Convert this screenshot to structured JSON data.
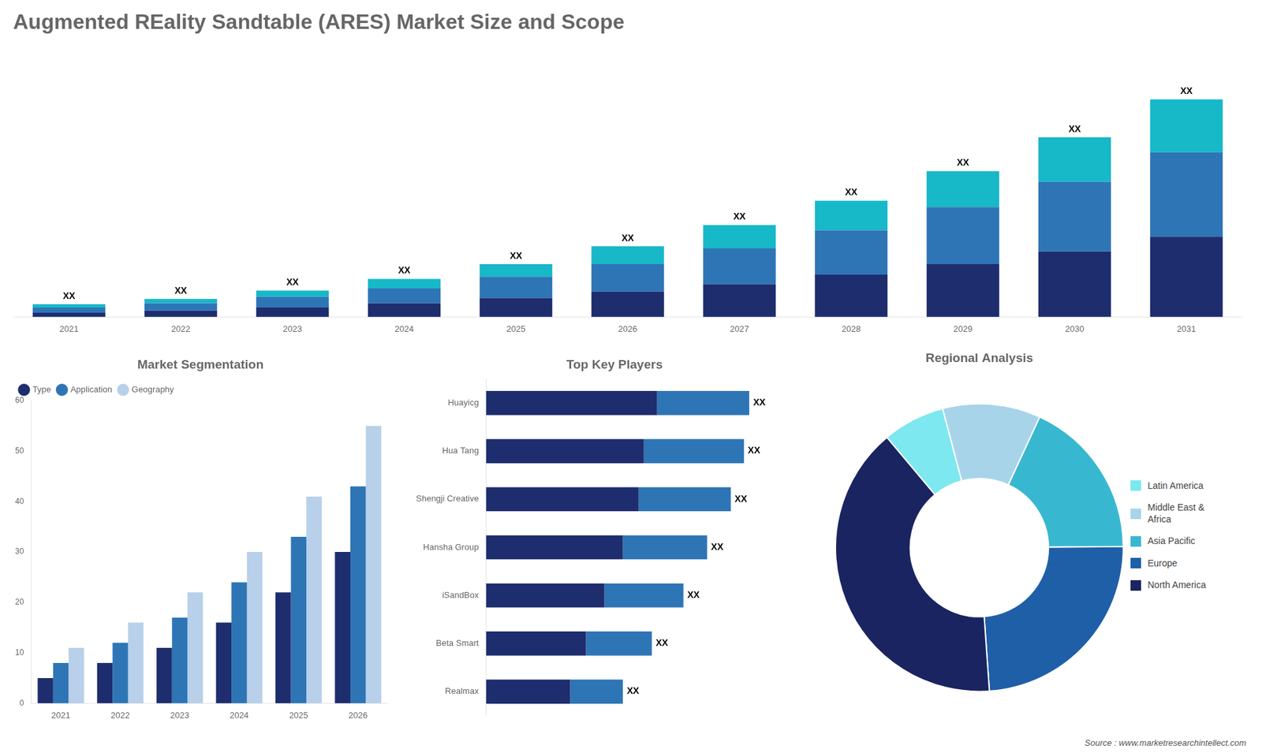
{
  "chart_data": [
    {
      "type": "bar",
      "title": "Augmented REality Sandtable (ARES) Market Size and Scope",
      "categories": [
        "2021",
        "2022",
        "2023",
        "2024",
        "2025",
        "2026",
        "2027",
        "2028",
        "2029",
        "2030",
        "2031"
      ],
      "series": [
        {
          "color": "#1e2d6e",
          "values": [
            2,
            3,
            4.5,
            6.5,
            9,
            12,
            15.5,
            20,
            25,
            31,
            38
          ]
        },
        {
          "color": "#2e75b6",
          "values": [
            2.5,
            3.5,
            5,
            7,
            10,
            13,
            17,
            21,
            27,
            33,
            40
          ]
        },
        {
          "color": "#17b8c8",
          "values": [
            1.5,
            2,
            3,
            4.5,
            6,
            8.5,
            11,
            14,
            17,
            21,
            25
          ]
        }
      ],
      "stacked": true,
      "ylim": [
        0,
        125.66
      ],
      "grid": false,
      "tick_labels": "x",
      "annotations": [
        {
          "text": "XX",
          "x": "2021"
        },
        {
          "text": "XX",
          "x": "2022"
        },
        {
          "text": "XX",
          "x": "2023"
        },
        {
          "text": "XX",
          "x": "2024"
        },
        {
          "text": "XX",
          "x": "2025"
        },
        {
          "text": "XX",
          "x": "2026"
        },
        {
          "text": "XX",
          "x": "2027"
        },
        {
          "text": "XX",
          "x": "2028"
        },
        {
          "text": "XX",
          "x": "2029"
        },
        {
          "text": "XX",
          "x": "2030"
        },
        {
          "text": "XX",
          "x": "2031"
        },
        {
          "text": "Source : www.marketresearchintellect.com"
        }
      ]
    },
    {
      "type": "bar",
      "title": "Market Segmentation",
      "categories": [
        "2021",
        "2022",
        "2023",
        "2024",
        "2025",
        "2026"
      ],
      "series": [
        {
          "name": "Type",
          "color": "#1e2d6e",
          "values": [
            5,
            8,
            11,
            16,
            22,
            30
          ]
        },
        {
          "name": "Application",
          "color": "#2e75b6",
          "values": [
            8,
            12,
            17,
            24,
            33,
            43
          ]
        },
        {
          "name": "Geography",
          "color": "#b8d0ea",
          "values": [
            11,
            16,
            22,
            30,
            41,
            55
          ]
        }
      ],
      "ylim": [
        0,
        60
      ],
      "yticks": [
        0,
        10,
        20,
        30,
        40,
        50,
        60
      ],
      "grid": false,
      "legend": "upper left"
    },
    {
      "type": "bar",
      "title": "Top Key Players",
      "orientation": "horizontal",
      "stacked": true,
      "categories": [
        "Huayicg",
        "Hua Tang",
        "Shengji Creative",
        "Hansha Group",
        "iSandBox",
        "Beta Smart",
        "Realmax"
      ],
      "series": [
        {
          "color": "#1e2d6e",
          "values": [
            6.5,
            6.0,
            5.8,
            5.2,
            4.5,
            3.8,
            3.2
          ]
        },
        {
          "color": "#2e75b6",
          "values": [
            3.5,
            3.8,
            3.5,
            3.2,
            3.0,
            2.5,
            2.0
          ]
        }
      ],
      "xlim": [
        0,
        12.5
      ],
      "grid": false,
      "tick_labels": "y",
      "annotations": [
        {
          "text": "XX",
          "y": "Huayicg"
        },
        {
          "text": "XX",
          "y": "Hua Tang"
        },
        {
          "text": "XX",
          "y": "Shengji Creative"
        },
        {
          "text": "XX",
          "y": "Hansha Group"
        },
        {
          "text": "XX",
          "y": "iSandBox"
        },
        {
          "text": "XX",
          "y": "Beta Smart"
        },
        {
          "text": "XX",
          "y": "Realmax"
        }
      ]
    },
    {
      "type": "doughnut",
      "title": "Regional Analysis",
      "categories": [
        "Latin America",
        "Middle East &\nAfrica",
        "Asia Pacific",
        "Europe",
        "North America"
      ],
      "values": [
        7,
        11,
        18,
        24,
        40
      ],
      "colors": [
        "#7de8f0",
        "#a8d4ea",
        "#38b8d0",
        "#1e5fa8",
        "#1a2460"
      ],
      "legend": "right"
    }
  ]
}
